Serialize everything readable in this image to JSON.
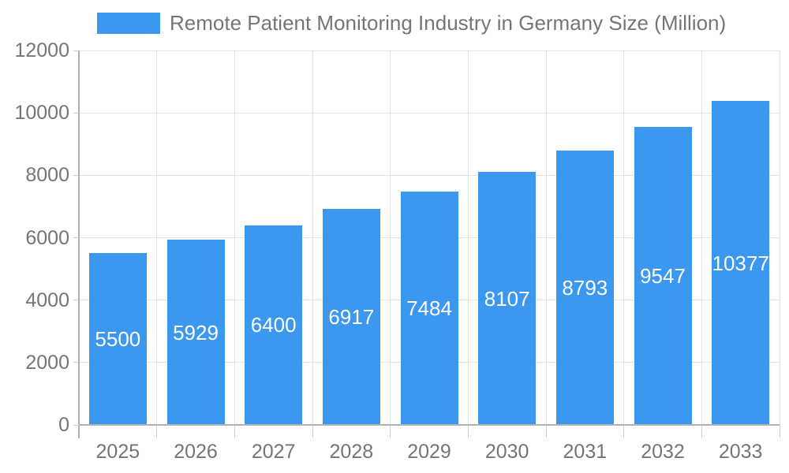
{
  "legend": {
    "label": "Remote Patient Monitoring Industry in Germany Size (Million)"
  },
  "chart_data": {
    "type": "bar",
    "title": "Remote Patient Monitoring Industry in Germany Size (Million)",
    "series_name": "Remote Patient Monitoring Industry in Germany Size (Million)",
    "categories": [
      "2025",
      "2026",
      "2027",
      "2028",
      "2029",
      "2030",
      "2031",
      "2032",
      "2033"
    ],
    "values": [
      5500,
      5929,
      6400,
      6917,
      7484,
      8107,
      8793,
      9547,
      10377
    ],
    "value_labels": [
      "5500",
      "5929",
      "6400",
      "6917",
      "7484",
      "8107",
      "8793",
      "9547",
      "10377"
    ],
    "xlabel": "",
    "ylabel": "",
    "ylim": [
      0,
      12000
    ],
    "yticks": [
      0,
      2000,
      4000,
      6000,
      8000,
      10000,
      12000
    ],
    "ytick_labels": [
      "0",
      "2000",
      "4000",
      "6000",
      "8000",
      "10000",
      "12000"
    ],
    "grid": true,
    "legend_position": "top-left",
    "bar_color": "#3b98ee",
    "value_label_color": "#ffffff",
    "axis_text_color": "#757575",
    "gridline_color": "#e3e3e3",
    "axis_line_color": "#b0b0b0",
    "tick_color": "#cccccc",
    "background_color": "#ffffff"
  }
}
